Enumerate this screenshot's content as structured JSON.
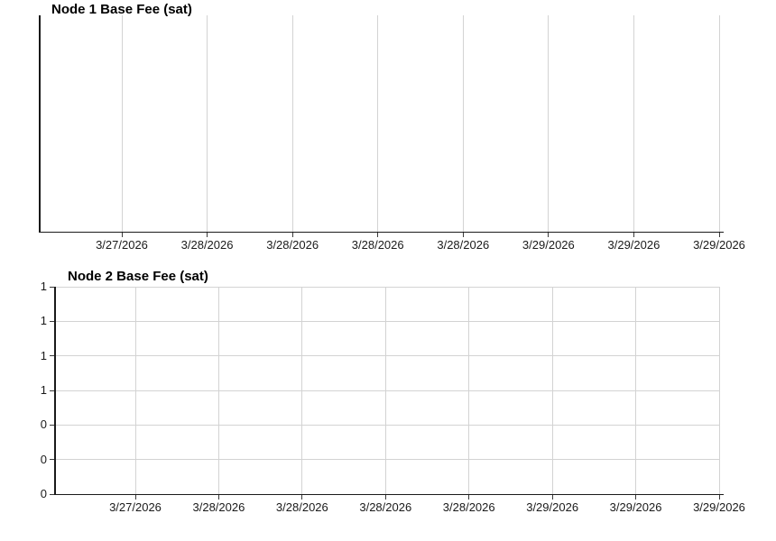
{
  "page": {
    "background": "#ffffff"
  },
  "colors": {
    "title": "#000000",
    "axis": "#1a1a1a",
    "gridline": "#d3d3d3",
    "tick_mark": "#3a3a3a",
    "tick_label": "#1a1a1a"
  },
  "chart_data": [
    {
      "type": "line",
      "title": "Node 1 Base Fee (sat)",
      "xlabel": "",
      "ylabel": "",
      "x_tick_labels": [
        "3/27/2026",
        "3/28/2026",
        "3/28/2026",
        "3/28/2026",
        "3/28/2026",
        "3/29/2026",
        "3/29/2026",
        "3/29/2026"
      ],
      "y_tick_labels": [],
      "series": [],
      "grid": {
        "vertical": true,
        "horizontal": false
      },
      "legend": "none"
    },
    {
      "type": "line",
      "title": "Node 2 Base Fee (sat)",
      "xlabel": "",
      "ylabel": "",
      "x_tick_labels": [
        "3/27/2026",
        "3/28/2026",
        "3/28/2026",
        "3/28/2026",
        "3/28/2026",
        "3/29/2026",
        "3/29/2026",
        "3/29/2026"
      ],
      "y_tick_labels": [
        "1",
        "1",
        "1",
        "1",
        "0",
        "0",
        "0"
      ],
      "series": [],
      "grid": {
        "vertical": true,
        "horizontal": true
      },
      "legend": "none"
    }
  ]
}
